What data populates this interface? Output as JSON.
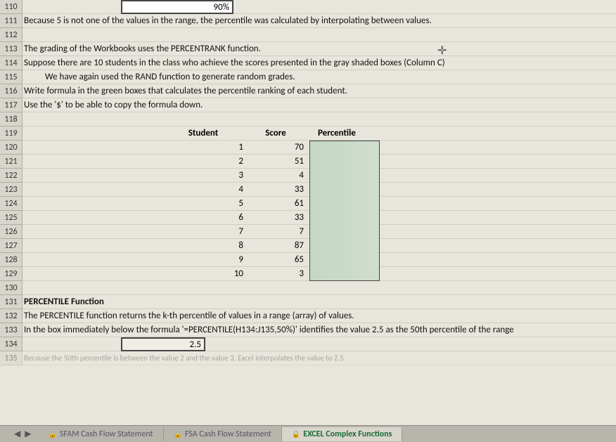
{
  "rows": {
    "r110": {
      "num": "110",
      "box_value": "90%"
    },
    "r111": {
      "num": "111",
      "text": "Because 5 is not one of the values in the range, the percentile was calculated by interpolating between values."
    },
    "r112": {
      "num": "112",
      "text": ""
    },
    "r113": {
      "num": "113",
      "text": "The grading of the Workbooks uses the PERCENTRANK function."
    },
    "r114": {
      "num": "114",
      "text": "Suppose there are 10 students in the class who achieve the scores presented in the gray shaded boxes (Column C)"
    },
    "r115": {
      "num": "115",
      "text": "We have again used the RAND function to generate random grades."
    },
    "r116": {
      "num": "116",
      "text": "Write formula in the green boxes that calculates the percentile ranking of each student."
    },
    "r117": {
      "num": "117",
      "text": "Use the '$' to be able to copy the formula down."
    },
    "r118": {
      "num": "118",
      "text": ""
    },
    "r119": {
      "num": "119",
      "h1": "Student",
      "h2": "Score",
      "h3": "Percentile"
    },
    "r130": {
      "num": "130",
      "text": ""
    },
    "r131": {
      "num": "131",
      "text": "PERCENTILE Function"
    },
    "r132": {
      "num": "132",
      "text": "The PERCENTILE function returns the k-th percentile of values in a range (array) of values."
    },
    "r133": {
      "num": "133",
      "text": "In the box immediately below the formula '=PERCENTILE(H134:J135,50%)' identifies the value 2.5 as the 50th percentile of the range"
    },
    "r134": {
      "num": "134",
      "box_value": "2.5"
    },
    "r135": {
      "num": "135",
      "text": "Because the 50th percentile is between the value 2 and the value 3, Excel interpolates the value to 2.5"
    }
  },
  "table": [
    {
      "num": "120",
      "student": "1",
      "score": "70"
    },
    {
      "num": "121",
      "student": "2",
      "score": "51"
    },
    {
      "num": "122",
      "student": "3",
      "score": "4"
    },
    {
      "num": "123",
      "student": "4",
      "score": "33"
    },
    {
      "num": "124",
      "student": "5",
      "score": "61"
    },
    {
      "num": "125",
      "student": "6",
      "score": "33"
    },
    {
      "num": "126",
      "student": "7",
      "score": "7"
    },
    {
      "num": "127",
      "student": "8",
      "score": "87"
    },
    {
      "num": "128",
      "student": "9",
      "score": "65"
    },
    {
      "num": "129",
      "student": "10",
      "score": "3"
    }
  ],
  "tabs": {
    "t1": "SFAM Cash Flow Statement",
    "t2": "FSA Cash Flow Statement",
    "t3": "EXCEL Complex Functions"
  },
  "colors": {
    "green_cell": "#c8e0c8",
    "border": "#444444",
    "bg": "#e8e6dc",
    "rowhdr": "#d8d6cc"
  }
}
